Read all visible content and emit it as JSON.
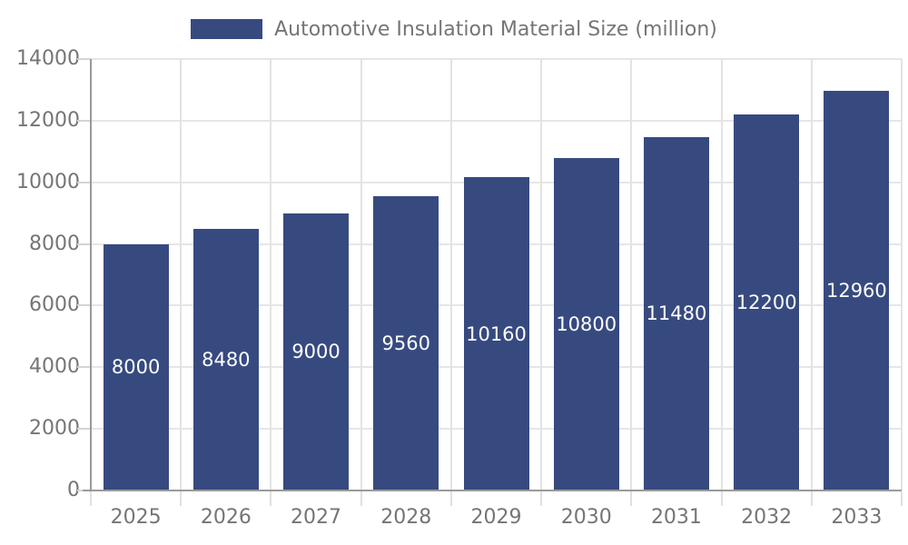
{
  "legend": {
    "label": "Automotive Insulation Material Size (million)"
  },
  "chart_data": {
    "type": "bar",
    "title": "Automotive Insulation Material Size (million)",
    "series_name": "Automotive Insulation Material Size (million)",
    "categories": [
      "2025",
      "2026",
      "2027",
      "2028",
      "2029",
      "2030",
      "2031",
      "2032",
      "2033"
    ],
    "values": [
      8000,
      8480,
      9000,
      9560,
      10160,
      10800,
      11480,
      12200,
      12960
    ],
    "bar_value_labels": [
      "8000",
      "8480",
      "9000",
      "9560",
      "10160",
      "10800",
      "11480",
      "12200",
      "12960"
    ],
    "xlabel": "",
    "ylabel": "",
    "ylim": [
      0,
      14000
    ],
    "yticks": [
      0,
      2000,
      4000,
      6000,
      8000,
      10000,
      12000,
      14000
    ],
    "ytick_labels": [
      "0",
      "2000",
      "4000",
      "6000",
      "8000",
      "10000",
      "12000",
      "14000"
    ],
    "grid": true,
    "legend_position": "top-center",
    "value_label_position": "center-of-bar"
  },
  "colors": {
    "bar": "#374A80",
    "value_label": "#FFFFFF",
    "tick_text": "#757575",
    "legend_text": "#757575",
    "axis_line": "#9A9A9A",
    "gridline": "#E5E5E5",
    "background": "#FFFFFF"
  }
}
